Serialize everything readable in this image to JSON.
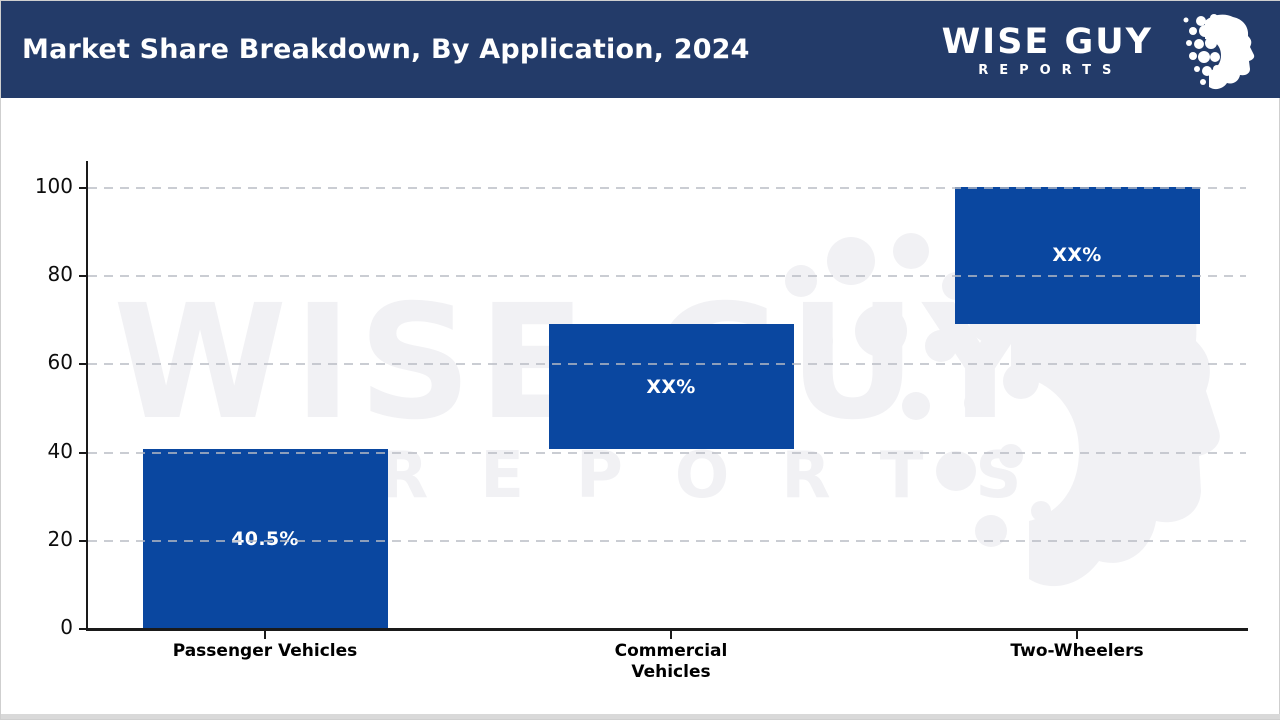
{
  "header": {
    "title": "Market Share Breakdown, By Application, 2024",
    "brand": {
      "line1": "WISE GUY",
      "line2": "REPORTS"
    }
  },
  "watermark": {
    "line1": "WISE GUY",
    "line2": "REPORTS"
  },
  "colors": {
    "header_bg": "#233B69",
    "bar_fill": "#0A47A0",
    "bar_label": "#FFFFFF",
    "gridline": "#D8D8D8",
    "axis": "#1A1A1A",
    "watermark": "#F1F1F4",
    "bottom_strip": "#D9D9D9"
  },
  "chart_data": {
    "type": "bar",
    "subtype": "waterfall",
    "title": "Market Share Breakdown, By Application, 2024",
    "xlabel": "",
    "ylabel": "",
    "ylim": [
      0,
      105
    ],
    "yticks": [
      0,
      20,
      40,
      60,
      80,
      100
    ],
    "grid": "dashed horizontal",
    "legend": "none",
    "categories": [
      "Passenger Vehicles",
      "Commercial\nVehicles",
      "Two-Wheelers"
    ],
    "bars": [
      {
        "category": "Passenger Vehicles",
        "start": 0,
        "end": 40.5,
        "value_label": "40.5%"
      },
      {
        "category": "Commercial Vehicles",
        "start": 40.5,
        "end": 69,
        "value_label": "XX%"
      },
      {
        "category": "Two-Wheelers",
        "start": 69,
        "end": 100,
        "value_label": "XX%"
      }
    ]
  }
}
